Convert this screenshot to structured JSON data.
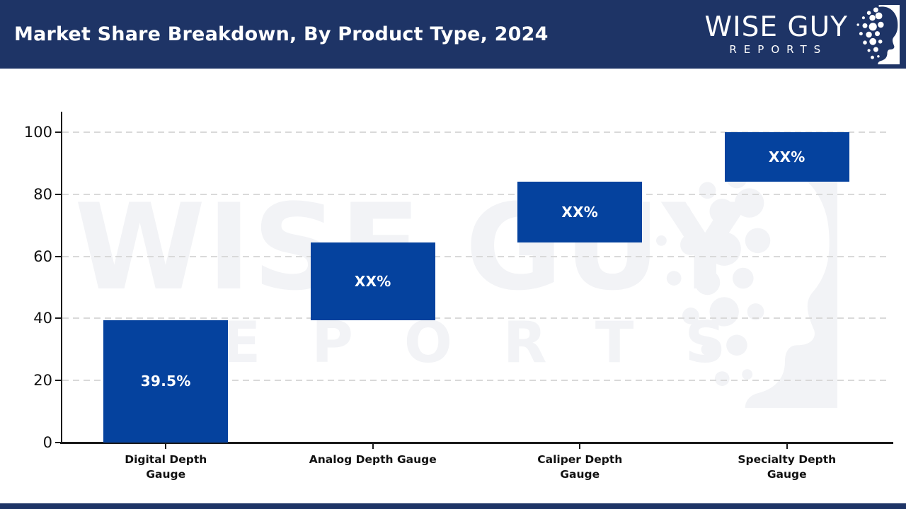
{
  "header": {
    "title": "Market Share Breakdown, By Product Type, 2024",
    "logo": {
      "line1": "WISE GUY",
      "line2": "REPORTS"
    }
  },
  "watermark": {
    "line1": "WISE GUY",
    "line2": "REPORTS"
  },
  "chart_data": {
    "type": "bar",
    "subtype": "waterfall-floating-bars",
    "title": "Market Share Breakdown, By Product Type, 2024",
    "xlabel": "",
    "ylabel": "",
    "categories": [
      "Digital Depth Gauge",
      "Analog Depth Gauge",
      "Caliper Depth Gauge",
      "Specialty Depth Gauge"
    ],
    "category_label_lines": [
      [
        "Digital Depth",
        "Gauge"
      ],
      [
        "Analog Depth Gauge"
      ],
      [
        "Caliper Depth",
        "Gauge"
      ],
      [
        "Specialty Depth",
        "Gauge"
      ]
    ],
    "bars": [
      {
        "category": "Digital Depth Gauge",
        "start": 0,
        "end": 39.5,
        "label": "39.5%"
      },
      {
        "category": "Analog Depth Gauge",
        "start": 39.5,
        "end": 64.4,
        "label": "XX%"
      },
      {
        "category": "Caliper Depth Gauge",
        "start": 64.4,
        "end": 84,
        "label": "XX%"
      },
      {
        "category": "Specialty Depth Gauge",
        "start": 84,
        "end": 100,
        "label": "XX%"
      }
    ],
    "yticks": [
      0,
      20,
      40,
      60,
      80,
      100
    ],
    "ylim": [
      0,
      107
    ],
    "grid": "horizontal-dashed",
    "legend": "none",
    "bar_color": "#05429e",
    "bar_label_color": "#ffffff",
    "axis_color": "#1a1a1a",
    "gridline_color": "#d9d9d9"
  },
  "colors": {
    "header_bg": "#1e3466",
    "footer_bg": "#1e3466",
    "page_bg": "#ffffff",
    "watermark": "#f2f3f6"
  }
}
